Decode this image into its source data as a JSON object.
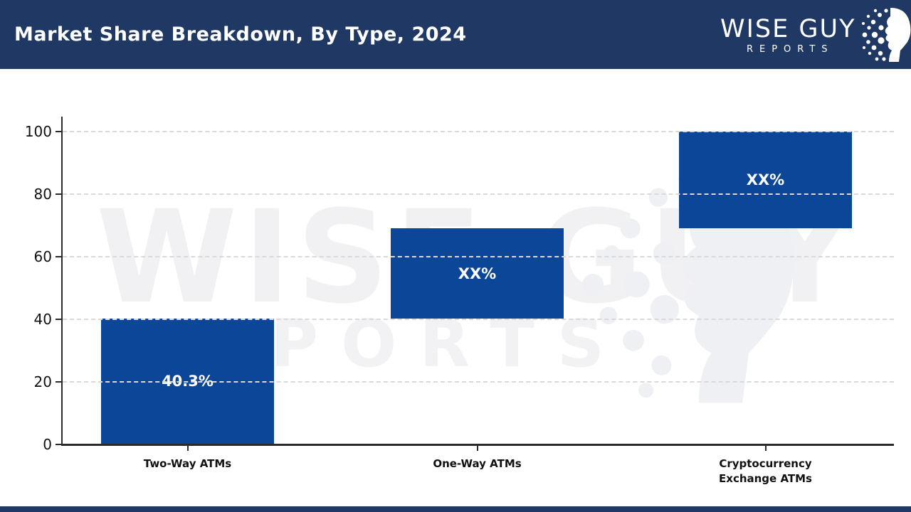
{
  "header": {
    "title": "Market Share Breakdown, By Type, 2024",
    "logo": {
      "line1": "WISE GUY",
      "line2": "REPORTS"
    }
  },
  "watermark": {
    "line1": "WISE GUY",
    "line2": "REPORTS"
  },
  "colors": {
    "header_navy": "#1f3864",
    "bar_blue": "#0b4699",
    "gridline_gray": "#d7d9db",
    "axis_dark": "#2a2a2a",
    "watermark_gray": "#f1f1f4"
  },
  "chart_data": {
    "type": "bar",
    "subtype": "waterfall",
    "title": "Market Share Breakdown, By Type, 2024",
    "xlabel": "",
    "ylabel": "",
    "ylim": [
      0,
      105
    ],
    "y_ticks": [
      0,
      20,
      40,
      60,
      80,
      100
    ],
    "grid": "horizontal-dashed",
    "legend": "none",
    "bar_color": "#0b4699",
    "categories": [
      "Two-Way ATMs",
      "One-Way ATMs",
      "Cryptocurrency Exchange ATMs"
    ],
    "category_lines": [
      [
        "Two-Way ATMs"
      ],
      [
        "One-Way ATMs"
      ],
      [
        "Cryptocurrency",
        "Exchange ATMs"
      ]
    ],
    "segments": [
      {
        "category": "Two-Way ATMs",
        "start": 0,
        "end": 40.3,
        "label": "40.3%"
      },
      {
        "category": "One-Way ATMs",
        "start": 40.3,
        "end": 69,
        "label": "XX%"
      },
      {
        "category": "Cryptocurrency Exchange ATMs",
        "start": 69,
        "end": 100,
        "label": "XX%"
      }
    ]
  }
}
